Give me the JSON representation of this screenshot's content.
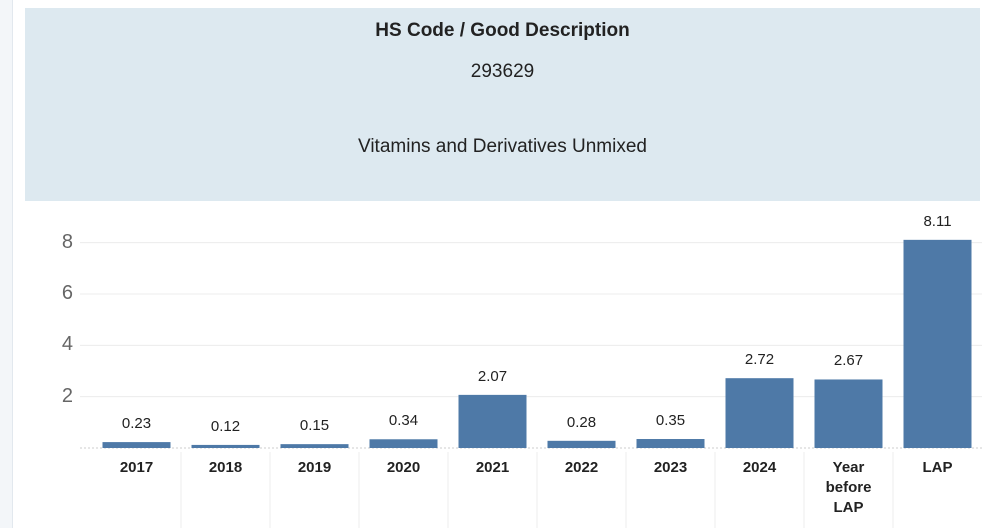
{
  "header": {
    "title": "HS Code / Good Description",
    "code": "293629",
    "description": "Vitamins and Derivatives Unmixed"
  },
  "chart_data": {
    "type": "bar",
    "categories": [
      "2017",
      "2018",
      "2019",
      "2020",
      "2021",
      "2022",
      "2023",
      "2024",
      "Year before LAP",
      "LAP"
    ],
    "values": [
      0.23,
      0.12,
      0.15,
      0.34,
      2.07,
      0.28,
      0.35,
      2.72,
      2.67,
      8.11
    ],
    "color": "#4e79a7",
    "ylim": [
      0,
      9
    ],
    "yticks": [
      2,
      4,
      6,
      8
    ],
    "grid": true
  }
}
